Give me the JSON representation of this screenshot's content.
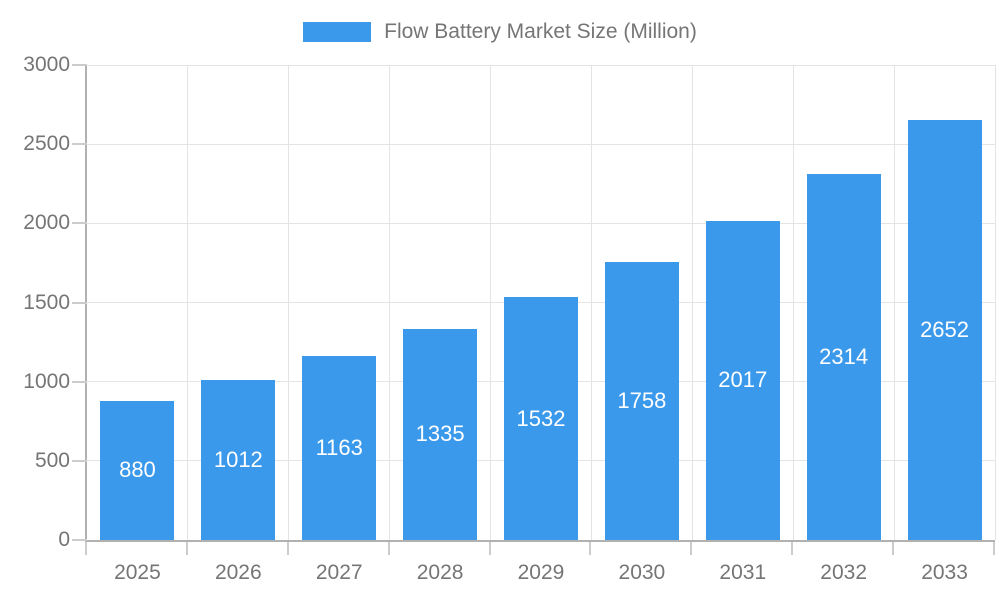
{
  "legend": {
    "label": "Flow Battery Market Size (Million)"
  },
  "chart_data": {
    "type": "bar",
    "title": "Flow Battery Market Size (Million)",
    "categories": [
      "2025",
      "2026",
      "2027",
      "2028",
      "2029",
      "2030",
      "2031",
      "2032",
      "2033"
    ],
    "values": [
      880,
      1012,
      1163,
      1335,
      1532,
      1758,
      2017,
      2314,
      2652
    ],
    "xlabel": "",
    "ylabel": "",
    "ylim": [
      0,
      3000
    ],
    "yticks": [
      0,
      500,
      1000,
      1500,
      2000,
      2500,
      3000
    ],
    "legend_position": "top-center",
    "grid": true,
    "bar_value_labels": "inside-centered",
    "colors": {
      "bar": "#3b99ec",
      "bar_label": "#ffffff",
      "axis_text": "#757575",
      "axis_line": "#b1b1b1",
      "gridline": "#e4e4e4",
      "tick": "#cccccc",
      "background": "#ffffff"
    }
  }
}
